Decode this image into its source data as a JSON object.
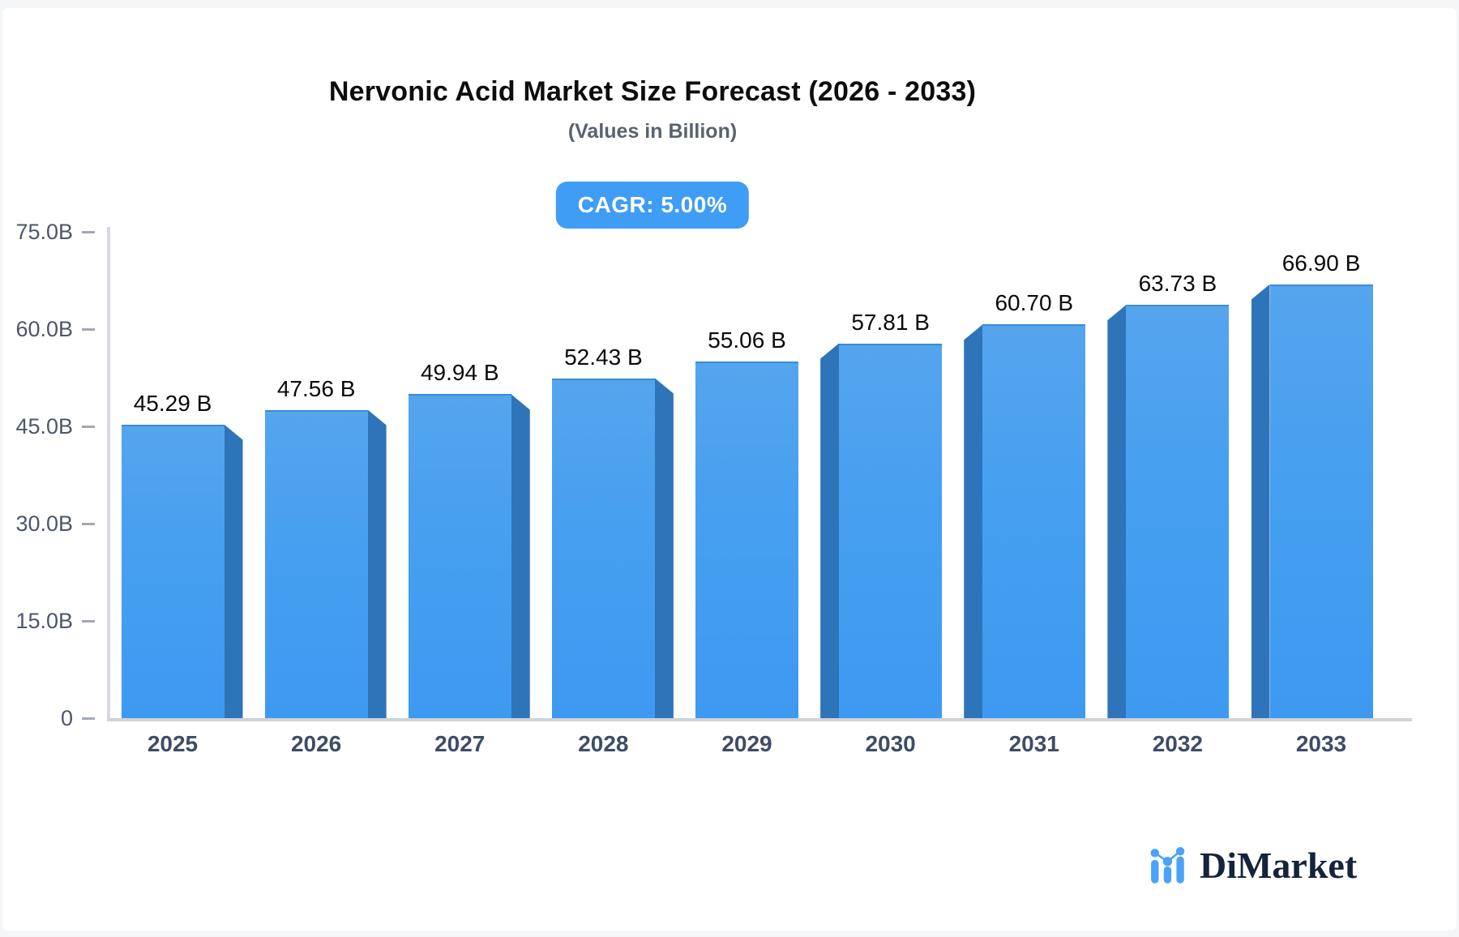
{
  "header": {
    "title": "Nervonic Acid Market Size Forecast (2026 - 2033)",
    "subtitle": "(Values in Billion)",
    "cagr_badge": "CAGR: 5.00%"
  },
  "chart_data": {
    "type": "bar",
    "title": "Nervonic Acid Market Size Forecast (2026 - 2033)",
    "subtitle": "(Values in Billion)",
    "cagr_label": "CAGR: 5.00%",
    "unit": "Billion",
    "categories": [
      "2025",
      "2026",
      "2027",
      "2028",
      "2029",
      "2030",
      "2031",
      "2032",
      "2033"
    ],
    "values": [
      45.29,
      47.56,
      49.94,
      52.43,
      55.06,
      57.81,
      60.7,
      63.73,
      66.9
    ],
    "value_labels": [
      "45.29 B",
      "47.56 B",
      "49.94 B",
      "52.43 B",
      "55.06 B",
      "57.81 B",
      "60.70 B",
      "63.73 B",
      "66.90 B"
    ],
    "ylim": [
      0,
      75
    ],
    "y_ticks": [
      {
        "value": 75,
        "label": "75.0B"
      },
      {
        "value": 60,
        "label": "60.0B"
      },
      {
        "value": 45,
        "label": "45.0B"
      },
      {
        "value": 30,
        "label": "30.0B"
      },
      {
        "value": 15,
        "label": "15.0B"
      },
      {
        "value": 0,
        "label": "0"
      }
    ],
    "grid": false,
    "legend": "none",
    "bar_color": "#469ff0",
    "bar_side_color": "#2e74b8",
    "style": "3d-fan-perspective"
  },
  "footer": {
    "logo_text": "DiMarket",
    "logo_icon": "mini-bar-line-chart-icon",
    "logo_color": "#4aa3f7"
  }
}
